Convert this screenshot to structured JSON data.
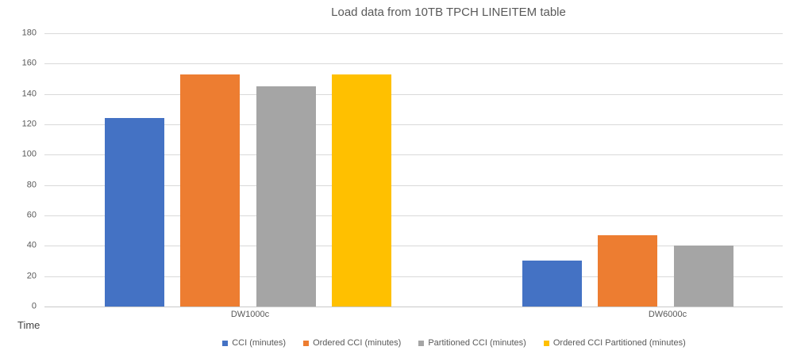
{
  "chart_data": {
    "type": "bar",
    "title": "Load data from 10TB TPCH LINEITEM table",
    "axis_title": "Time",
    "categories": [
      "DW1000c",
      "DW6000c"
    ],
    "series": [
      {
        "name": "CCI (minutes)",
        "color": "#4472C4",
        "values": [
          124,
          30
        ]
      },
      {
        "name": "Ordered CCI (minutes)",
        "color": "#ED7D31",
        "values": [
          153,
          47
        ]
      },
      {
        "name": "Partitioned CCI (minutes)",
        "color": "#A5A5A5",
        "values": [
          145,
          40
        ]
      },
      {
        "name": "Ordered CCI Partitioned (minutes)",
        "color": "#FFC000",
        "values": [
          153,
          0
        ]
      }
    ],
    "ylim": [
      0,
      180
    ],
    "yticks": [
      0,
      20,
      40,
      60,
      80,
      100,
      120,
      140,
      160,
      180
    ],
    "grid": "horizontal",
    "gridline_color": "#D9D9D9",
    "text_color": "#595959",
    "legend_position": "bottom"
  }
}
